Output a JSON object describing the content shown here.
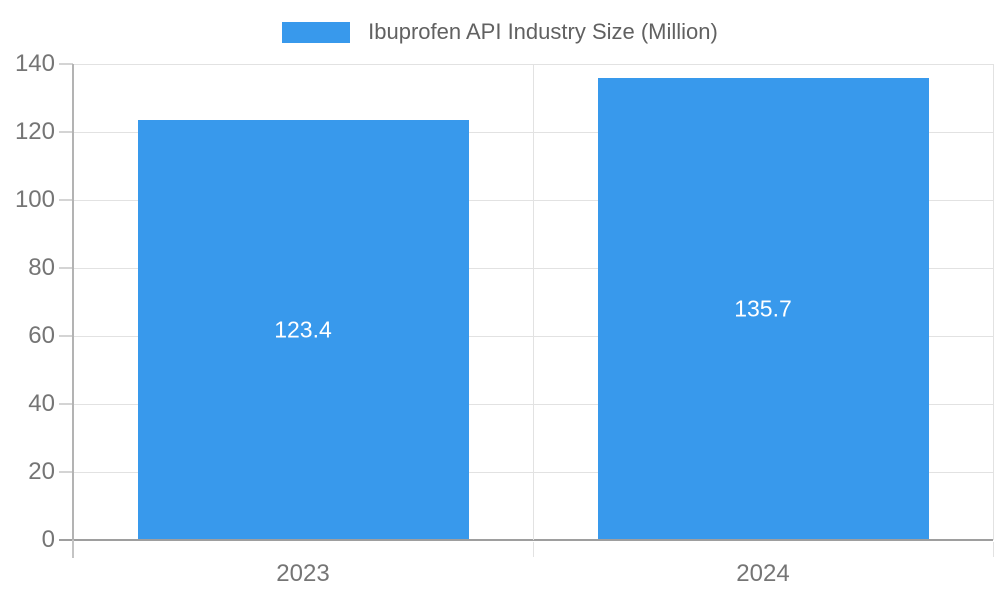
{
  "chart_data": {
    "type": "bar",
    "title": "Ibuprofen API Industry Size (Million)",
    "legend_position": "top",
    "categories": [
      "2023",
      "2024"
    ],
    "series": [
      {
        "name": "Ibuprofen API Industry Size (Million)",
        "values": [
          123.4,
          135.7
        ]
      }
    ],
    "value_labels": [
      "123.4",
      "135.7"
    ],
    "xlabel": "",
    "ylabel": "",
    "ylim": [
      0,
      140
    ],
    "yticks": [
      0,
      20,
      40,
      60,
      80,
      100,
      120,
      140
    ],
    "grid": true,
    "colors": {
      "bar": "#3899ec",
      "bar_value_label": "#ffffff",
      "grid": "#e2e2e2",
      "baseline": "#9e9e9e",
      "axis_line": "#b3b3b3",
      "tick_mark": "#d4d4d4",
      "axis_tick_below": "#c4c4c4",
      "axis_label": "#757575",
      "legend_text": "#616161",
      "background": "#ffffff"
    }
  }
}
